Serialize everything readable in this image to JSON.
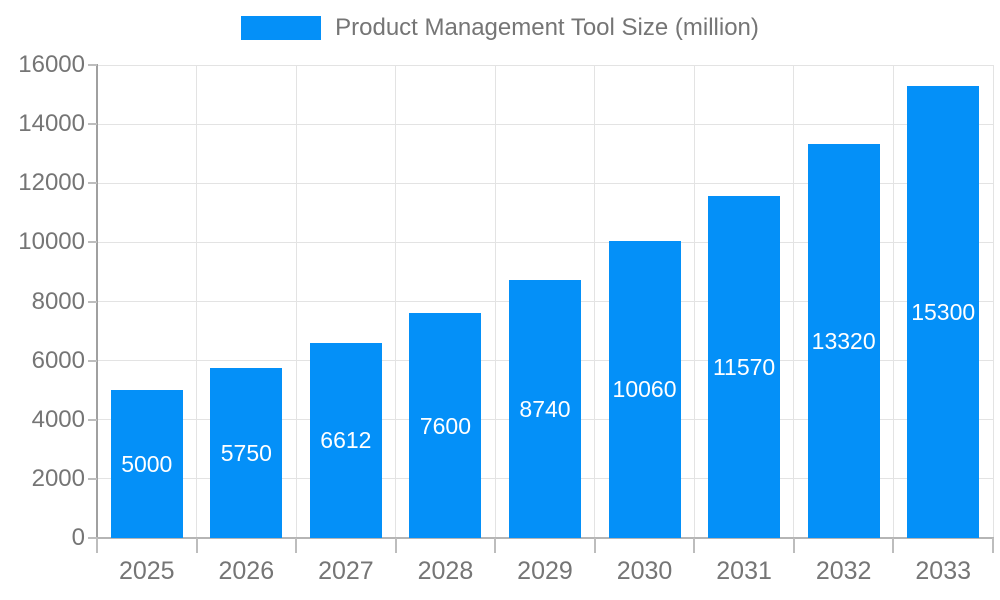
{
  "legend": {
    "label": "Product Management Tool Size (million)"
  },
  "chart_data": {
    "type": "bar",
    "title": "Product Management Tool Size (million)",
    "categories": [
      "2025",
      "2026",
      "2027",
      "2028",
      "2029",
      "2030",
      "2031",
      "2032",
      "2033"
    ],
    "values": [
      5000,
      5750,
      6612,
      7600,
      8740,
      10060,
      11570,
      13320,
      15300
    ],
    "xlabel": "",
    "ylabel": "",
    "ylim": [
      0,
      16000
    ],
    "ytick_step": 2000,
    "ytick_labels": [
      "0",
      "2000",
      "4000",
      "6000",
      "8000",
      "10000",
      "12000",
      "14000",
      "16000"
    ],
    "grid": true,
    "legend_position": "top-center",
    "value_labels": "inside-center",
    "colors": {
      "bar": "#0490f8",
      "value_label": "#ffffff",
      "axis": "#a8a8a8",
      "grid": "#e3e3e3",
      "tick": "#bdbdbd",
      "text": "#757575",
      "background": "#ffffff"
    }
  }
}
